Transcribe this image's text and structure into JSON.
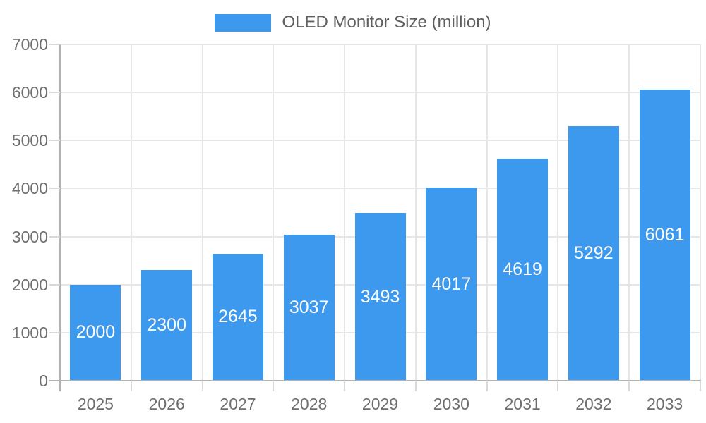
{
  "colors": {
    "bar": "#3D99EE",
    "bar_label": "#FFFFFF",
    "axis_text": "#6E6E6E",
    "legend_text": "#5F5F5F",
    "grid_line": "#E6E6E6",
    "axis_line": "#B3B3B3",
    "tick_line": "#D9D9D9",
    "background": "#FFFFFF"
  },
  "legend": {
    "position": "top-center",
    "items": [
      {
        "label": "OLED Monitor Size (million)",
        "swatch_color": "#3D99EE"
      }
    ]
  },
  "chart_data": {
    "type": "bar",
    "title": "OLED Monitor Size (million)",
    "categories": [
      "2025",
      "2026",
      "2027",
      "2028",
      "2029",
      "2030",
      "2031",
      "2032",
      "2033"
    ],
    "values": [
      2000,
      2300,
      2645,
      3037,
      3493,
      4017,
      4619,
      5292,
      6061
    ],
    "xlabel": "",
    "ylabel": "",
    "ylim": [
      0,
      7000
    ],
    "yticks": [
      0,
      1000,
      2000,
      3000,
      4000,
      5000,
      6000,
      7000
    ],
    "ytick_labels": [
      "0",
      "1000",
      "2000",
      "3000",
      "4000",
      "5000",
      "6000",
      "7000"
    ],
    "grid": true,
    "legend_position": "top-center",
    "bar_label_position": "inside-center"
  }
}
